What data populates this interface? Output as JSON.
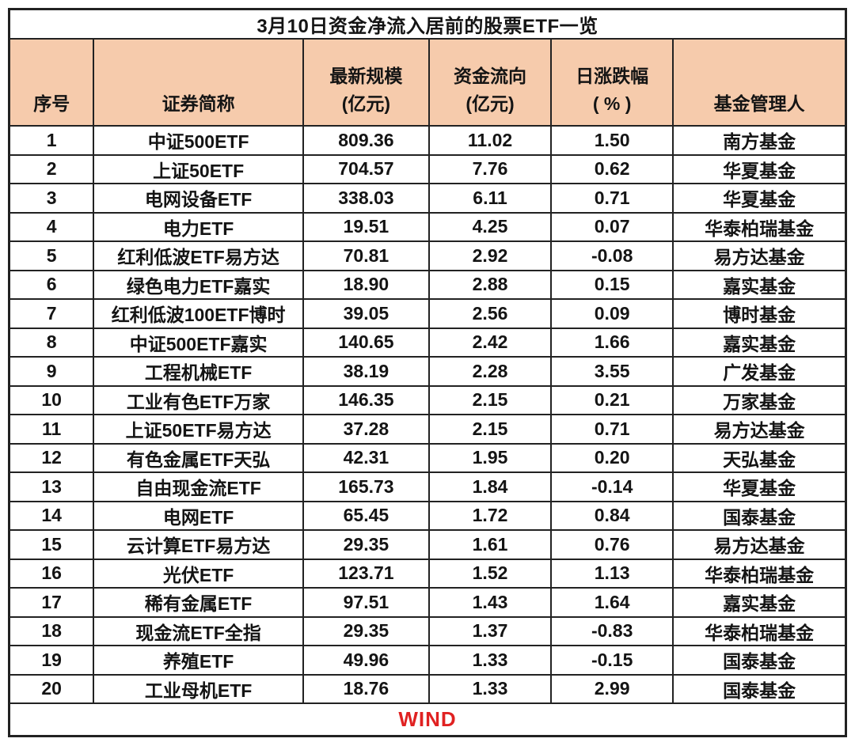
{
  "title": "3月10日资金净流入居前的股票ETF一览",
  "source_label": "WIND",
  "colors": {
    "header_bg": "#F6CBAC",
    "border": "#222222",
    "text": "#141414",
    "source_red": "#E02121"
  },
  "header": {
    "columns": [
      {
        "line1": "序号",
        "line2": ""
      },
      {
        "line1": "证券简称",
        "line2": ""
      },
      {
        "line1": "最新规模",
        "line2": "(亿元)"
      },
      {
        "line1": "资金流向",
        "line2": "(亿元)"
      },
      {
        "line1": "日涨跌幅",
        "line2": "( % )"
      },
      {
        "line1": "基金管理人",
        "line2": ""
      }
    ]
  },
  "chart_data": {
    "type": "table",
    "title": "3月10日资金净流入居前的股票ETF一览",
    "columns": [
      "序号",
      "证券简称",
      "最新规模(亿元)",
      "资金流向(亿元)",
      "日涨跌幅(%)",
      "基金管理人"
    ],
    "rows": [
      [
        "1",
        "中证500ETF",
        "809.36",
        "11.02",
        "1.50",
        "南方基金"
      ],
      [
        "2",
        "上证50ETF",
        "704.57",
        "7.76",
        "0.62",
        "华夏基金"
      ],
      [
        "3",
        "电网设备ETF",
        "338.03",
        "6.11",
        "0.71",
        "华夏基金"
      ],
      [
        "4",
        "电力ETF",
        "19.51",
        "4.25",
        "0.07",
        "华泰柏瑞基金"
      ],
      [
        "5",
        "红利低波ETF易方达",
        "70.81",
        "2.92",
        "-0.08",
        "易方达基金"
      ],
      [
        "6",
        "绿色电力ETF嘉实",
        "18.90",
        "2.88",
        "0.15",
        "嘉实基金"
      ],
      [
        "7",
        "红利低波100ETF博时",
        "39.05",
        "2.56",
        "0.09",
        "博时基金"
      ],
      [
        "8",
        "中证500ETF嘉实",
        "140.65",
        "2.42",
        "1.66",
        "嘉实基金"
      ],
      [
        "9",
        "工程机械ETF",
        "38.19",
        "2.28",
        "3.55",
        "广发基金"
      ],
      [
        "10",
        "工业有色ETF万家",
        "146.35",
        "2.15",
        "0.21",
        "万家基金"
      ],
      [
        "11",
        "上证50ETF易方达",
        "37.28",
        "2.15",
        "0.71",
        "易方达基金"
      ],
      [
        "12",
        "有色金属ETF天弘",
        "42.31",
        "1.95",
        "0.20",
        "天弘基金"
      ],
      [
        "13",
        "自由现金流ETF",
        "165.73",
        "1.84",
        "-0.14",
        "华夏基金"
      ],
      [
        "14",
        "电网ETF",
        "65.45",
        "1.72",
        "0.84",
        "国泰基金"
      ],
      [
        "15",
        "云计算ETF易方达",
        "29.35",
        "1.61",
        "0.76",
        "易方达基金"
      ],
      [
        "16",
        "光伏ETF",
        "123.71",
        "1.52",
        "1.13",
        "华泰柏瑞基金"
      ],
      [
        "17",
        "稀有金属ETF",
        "97.51",
        "1.43",
        "1.64",
        "嘉实基金"
      ],
      [
        "18",
        "现金流ETF全指",
        "29.35",
        "1.37",
        "-0.83",
        "华泰柏瑞基金"
      ],
      [
        "19",
        "养殖ETF",
        "49.96",
        "1.33",
        "-0.15",
        "国泰基金"
      ],
      [
        "20",
        "工业母机ETF",
        "18.76",
        "1.33",
        "2.99",
        "国泰基金"
      ]
    ]
  }
}
